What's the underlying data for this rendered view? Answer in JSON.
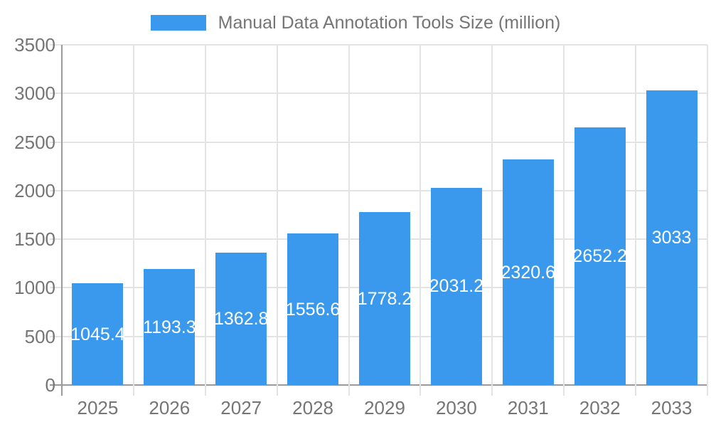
{
  "chart_data": {
    "type": "bar",
    "title": "Manual Data Annotation Tools Size (million)",
    "categories": [
      "2025",
      "2026",
      "2027",
      "2028",
      "2029",
      "2030",
      "2031",
      "2032",
      "2033"
    ],
    "values": [
      1045.4,
      1193.3,
      1362.8,
      1556.6,
      1778.2,
      2031.2,
      2320.6,
      2652.2,
      3033
    ],
    "value_labels": [
      "1045.4",
      "1193.3",
      "1362.8",
      "1556.6",
      "1778.2",
      "2031.2",
      "2320.6",
      "2652.2",
      "3033"
    ],
    "xlabel": "",
    "ylabel": "",
    "ylim": [
      0,
      3500
    ],
    "y_tick_step": 500,
    "y_tick_labels_top_to_bottom": [
      "3500",
      "3000",
      "2500",
      "2000",
      "1500",
      "1000",
      "500",
      "0"
    ],
    "grid": "on",
    "legend": {
      "position": "top",
      "label": "Manual Data Annotation Tools Size (million)"
    },
    "colors": {
      "bar": "#3a99ec",
      "axis_text": "#757575",
      "legend_text": "#757575",
      "grid_line": "#e3e3e3",
      "axis_line": "#9a9a9a",
      "value_label_text": "#ffffff",
      "background": "#ffffff"
    }
  }
}
